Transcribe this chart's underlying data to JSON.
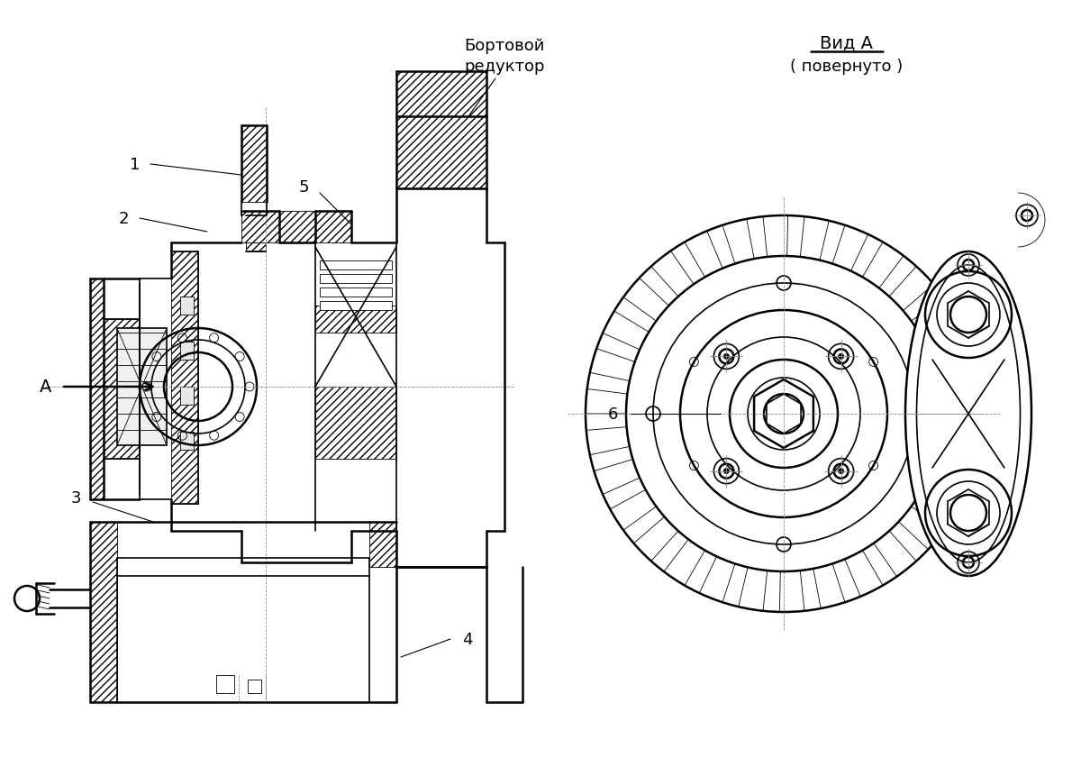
{
  "title_borto_1": "Бортовой",
  "title_borto_2": "редуктор",
  "title_vid": "Вид А",
  "title_povern": "( повернуто )",
  "bg_color": "#ffffff",
  "line_color": "#000000",
  "labels": [
    "1",
    "2",
    "3",
    "4",
    "5",
    "6"
  ],
  "label_A": "А",
  "fig_width": 12.0,
  "fig_height": 8.62,
  "dpi": 100
}
